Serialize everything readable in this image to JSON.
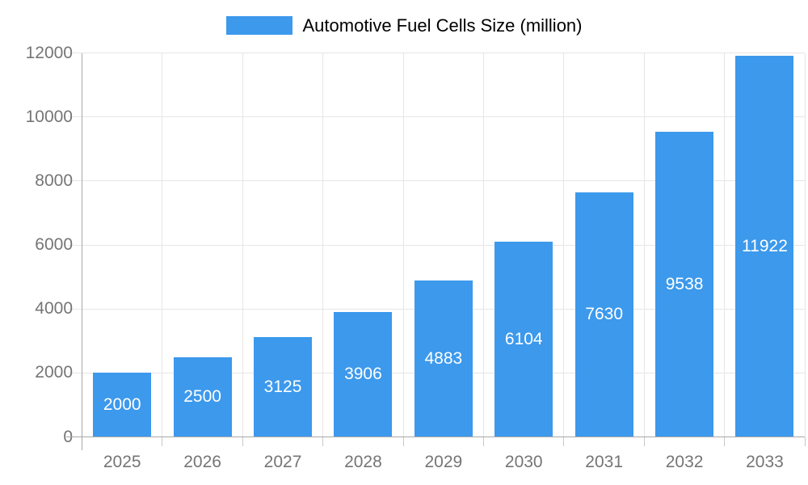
{
  "legend": {
    "label": "Automotive Fuel Cells Size (million)"
  },
  "chart_data": {
    "type": "bar",
    "title": "",
    "categories": [
      "2025",
      "2026",
      "2027",
      "2028",
      "2029",
      "2030",
      "2031",
      "2032",
      "2033"
    ],
    "series": [
      {
        "name": "Automotive Fuel Cells Size (million)",
        "values": [
          2000,
          2500,
          3125,
          3906,
          4883,
          6104,
          7630,
          9538,
          11922
        ]
      }
    ],
    "bar_value_labels": [
      "2000",
      "2500",
      "3125",
      "3906",
      "4883",
      "6104",
      "7630",
      "9538",
      "11922"
    ],
    "xlabel": "",
    "ylabel": "",
    "ylim": [
      0,
      12000
    ],
    "ytick_step": 2000,
    "yticks": [
      0,
      2000,
      4000,
      6000,
      8000,
      10000,
      12000
    ],
    "grid": true,
    "legend_position": "top",
    "colors": {
      "bar": "#3C99EC",
      "grid": "#E6E6E6",
      "axis": "#A9A9A9",
      "tick": "#C8C8C8",
      "axis_text": "#757575",
      "bar_label_text": "#FFFFFF"
    }
  }
}
